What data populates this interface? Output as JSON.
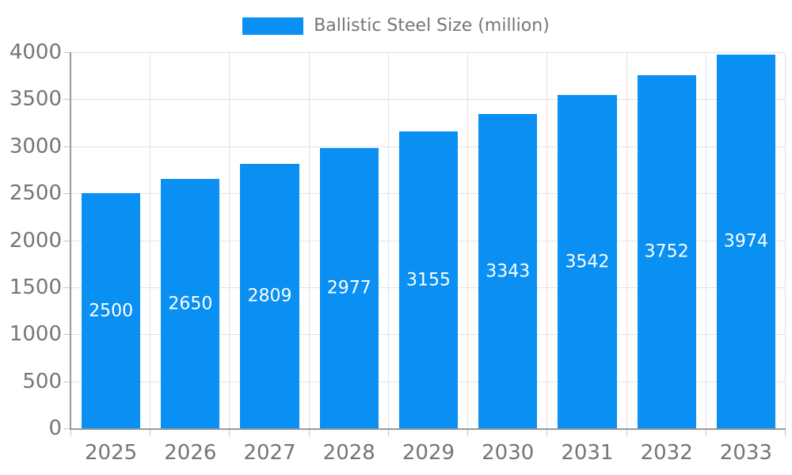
{
  "chart_data": {
    "type": "bar",
    "title": "Ballistic Steel Size (million)",
    "categories": [
      "2025",
      "2026",
      "2027",
      "2028",
      "2029",
      "2030",
      "2031",
      "2032",
      "2033"
    ],
    "values": [
      2500,
      2650,
      2809,
      2977,
      3155,
      3343,
      3542,
      3752,
      3974
    ],
    "xlabel": "",
    "ylabel": "",
    "ylim": [
      0,
      4000
    ],
    "ytick_step": 500,
    "grid": true,
    "legend_position": "top",
    "value_labels": "inside-center",
    "colors": {
      "bar": "#0a8ff2",
      "grid": "#e2e2e2",
      "axis": "#999999",
      "tick_label": "#757575",
      "legend_text": "#757575",
      "value_label": "#ffffff"
    }
  }
}
